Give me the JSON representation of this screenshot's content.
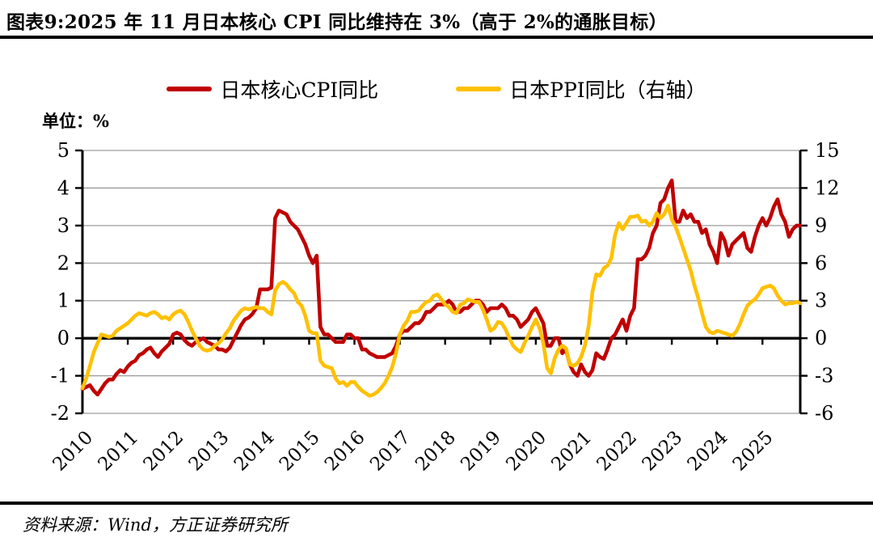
{
  "title": "图表9:2025 年 11 月日本核心 CPI 同比维持在 3%（高于 2%的通胀目标）",
  "unit_label": "单位：%",
  "source": "资料来源：Wind，方正证券研究所",
  "colors": {
    "cpi": "#c00000",
    "ppi": "#ffc000",
    "grid": "#9c9c9c",
    "axis": "#000000"
  },
  "legend": [
    {
      "label": "日本核心CPI同比",
      "color": "#c00000"
    },
    {
      "label": "日本PPI同比（右轴）",
      "color": "#ffc000"
    }
  ],
  "chart_data": {
    "type": "line",
    "title": "图表9:2025 年 11 月日本核心 CPI 同比维持在 3%（高于 2%的通胀目标）",
    "x_unit": "month",
    "x_range": [
      "2010-01",
      "2025-11"
    ],
    "x_tick_labels": [
      "2010",
      "2011",
      "2012",
      "2013",
      "2014",
      "2015",
      "2016",
      "2017",
      "2018",
      "2019",
      "2020",
      "2021",
      "2022",
      "2023",
      "2024",
      "2025"
    ],
    "left_axis": {
      "label": "单位：%",
      "min": -2,
      "max": 5,
      "ticks": [
        5,
        4,
        3,
        2,
        1,
        0,
        -1,
        -2
      ]
    },
    "right_axis": {
      "label": "右轴",
      "min": -6,
      "max": 15,
      "ticks": [
        15,
        12,
        9,
        6,
        3,
        0,
        -3,
        -6
      ]
    },
    "grid": true,
    "legend_position": "top",
    "series": [
      {
        "name": "日本核心CPI同比",
        "axis": "left",
        "color": "#c00000",
        "values": [
          -1.35,
          -1.3,
          -1.25,
          -1.4,
          -1.5,
          -1.35,
          -1.2,
          -1.1,
          -1.1,
          -0.95,
          -0.85,
          -0.9,
          -0.75,
          -0.65,
          -0.6,
          -0.45,
          -0.4,
          -0.3,
          -0.25,
          -0.4,
          -0.5,
          -0.35,
          -0.25,
          -0.15,
          0.1,
          0.15,
          0.1,
          -0.05,
          -0.15,
          -0.2,
          -0.1,
          -0.05,
          0.0,
          -0.1,
          -0.15,
          -0.2,
          -0.3,
          -0.3,
          -0.35,
          -0.25,
          -0.05,
          0.15,
          0.35,
          0.5,
          0.55,
          0.65,
          0.8,
          1.3,
          1.3,
          1.3,
          1.35,
          3.2,
          3.4,
          3.35,
          3.3,
          3.1,
          3.0,
          2.9,
          2.7,
          2.5,
          2.2,
          2.0,
          2.2,
          0.3,
          0.1,
          0.1,
          0.0,
          -0.1,
          -0.1,
          -0.1,
          0.1,
          0.1,
          0.0,
          0.0,
          -0.3,
          -0.3,
          -0.4,
          -0.45,
          -0.5,
          -0.5,
          -0.5,
          -0.45,
          -0.4,
          -0.2,
          0.1,
          0.2,
          0.2,
          0.3,
          0.4,
          0.4,
          0.5,
          0.7,
          0.7,
          0.8,
          0.9,
          0.9,
          0.9,
          1.0,
          0.9,
          0.7,
          0.7,
          0.8,
          0.8,
          0.9,
          1.0,
          1.0,
          0.9,
          0.7,
          0.8,
          0.8,
          0.8,
          0.9,
          0.8,
          0.6,
          0.6,
          0.5,
          0.3,
          0.4,
          0.5,
          0.7,
          0.8,
          0.6,
          0.4,
          -0.2,
          -0.2,
          0.0,
          0.0,
          -0.4,
          -0.3,
          -0.7,
          -0.9,
          -1.0,
          -0.7,
          -0.9,
          -1.0,
          -0.85,
          -0.4,
          -0.5,
          -0.55,
          -0.3,
          0.0,
          0.1,
          0.3,
          0.5,
          0.2,
          0.6,
          0.8,
          2.1,
          2.1,
          2.2,
          2.4,
          2.8,
          3.0,
          3.6,
          3.7,
          4.0,
          4.2,
          3.1,
          3.1,
          3.4,
          3.2,
          3.3,
          3.1,
          3.1,
          2.8,
          2.9,
          2.5,
          2.3,
          2.0,
          2.8,
          2.6,
          2.2,
          2.5,
          2.6,
          2.7,
          2.8,
          2.4,
          2.3,
          2.7,
          3.0,
          3.2,
          3.0,
          3.2,
          3.5,
          3.7,
          3.3,
          3.1,
          2.7,
          2.9,
          3.0,
          3.0
        ]
      },
      {
        "name": "日本PPI同比（右轴）",
        "axis": "right",
        "color": "#ffc000",
        "values": [
          -4.0,
          -3.2,
          -2.2,
          -1.1,
          -0.4,
          0.3,
          0.2,
          0.1,
          0.2,
          0.6,
          0.8,
          1.0,
          1.2,
          1.5,
          1.8,
          2.0,
          1.9,
          1.8,
          2.0,
          2.1,
          1.9,
          1.6,
          1.7,
          1.5,
          1.9,
          2.1,
          2.2,
          1.9,
          1.3,
          0.6,
          0.0,
          -0.6,
          -0.9,
          -1.0,
          -0.9,
          -0.6,
          -0.4,
          -0.1,
          0.4,
          0.8,
          1.4,
          1.8,
          2.2,
          2.4,
          2.3,
          2.4,
          2.5,
          2.4,
          2.4,
          2.1,
          1.9,
          3.8,
          4.3,
          4.5,
          4.3,
          3.9,
          3.6,
          2.9,
          2.6,
          1.8,
          0.6,
          0.4,
          0.4,
          -1.8,
          -2.2,
          -2.3,
          -2.4,
          -3.2,
          -3.6,
          -3.5,
          -3.8,
          -3.5,
          -3.5,
          -3.9,
          -4.2,
          -4.4,
          -4.6,
          -4.5,
          -4.3,
          -4.0,
          -3.6,
          -3.0,
          -2.3,
          -1.2,
          0.3,
          1.0,
          1.4,
          2.1,
          2.1,
          2.2,
          2.6,
          2.9,
          3.0,
          3.4,
          3.5,
          3.1,
          2.7,
          2.5,
          2.1,
          2.0,
          2.7,
          2.8,
          3.1,
          3.0,
          2.9,
          2.9,
          2.3,
          1.5,
          0.6,
          0.8,
          1.3,
          1.2,
          0.7,
          0.0,
          -0.6,
          -0.9,
          -1.1,
          -0.4,
          0.2,
          0.9,
          1.5,
          0.8,
          -0.4,
          -2.4,
          -2.8,
          -1.6,
          -0.9,
          -0.6,
          -0.8,
          -2.1,
          -2.2,
          -2.0,
          -1.5,
          -0.6,
          1.0,
          3.7,
          5.1,
          5.0,
          5.6,
          5.8,
          6.4,
          8.3,
          9.2,
          8.7,
          9.2,
          9.7,
          9.7,
          9.8,
          9.3,
          9.4,
          9.0,
          9.3,
          10.0,
          9.6,
          9.9,
          10.6,
          9.5,
          8.9,
          8.1,
          7.2,
          6.3,
          5.4,
          4.2,
          3.2,
          2.0,
          0.9,
          0.5,
          0.4,
          0.6,
          0.5,
          0.4,
          0.3,
          0.2,
          0.5,
          1.1,
          1.9,
          2.6,
          2.9,
          3.1,
          3.5,
          4.0,
          4.1,
          4.2,
          4.0,
          3.4,
          3.0,
          2.7,
          2.8,
          2.8,
          2.9,
          2.8
        ]
      }
    ]
  }
}
